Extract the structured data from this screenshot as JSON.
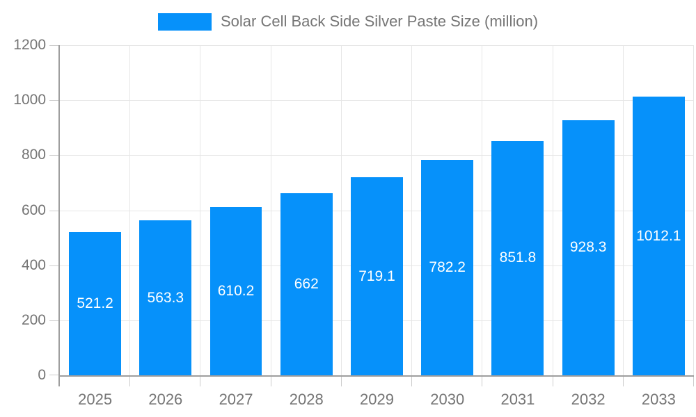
{
  "chart_data": {
    "type": "bar",
    "title": "Solar Cell Back Side Silver Paste Size (million)",
    "categories": [
      "2025",
      "2026",
      "2027",
      "2028",
      "2029",
      "2030",
      "2031",
      "2032",
      "2033"
    ],
    "values": [
      521.2,
      563.3,
      610.2,
      662,
      719.1,
      782.2,
      851.8,
      928.3,
      1012.1
    ],
    "value_labels": [
      "521.2",
      "563.3",
      "610.2",
      "662",
      "719.1",
      "782.2",
      "851.8",
      "928.3",
      "1012.1"
    ],
    "xlabel": "",
    "ylabel": "",
    "ylim": [
      0,
      1200
    ],
    "y_ticks": [
      0,
      200,
      400,
      600,
      800,
      1000,
      1200
    ],
    "grid": true,
    "legend_position": "top",
    "colors": {
      "bar": "#0691fa",
      "value_label": "#ffffff",
      "axis_text": "#757575",
      "grid_line": "#e6e6e6",
      "tick_line": "#cccccc",
      "axis_line": "#9e9e9e"
    }
  }
}
